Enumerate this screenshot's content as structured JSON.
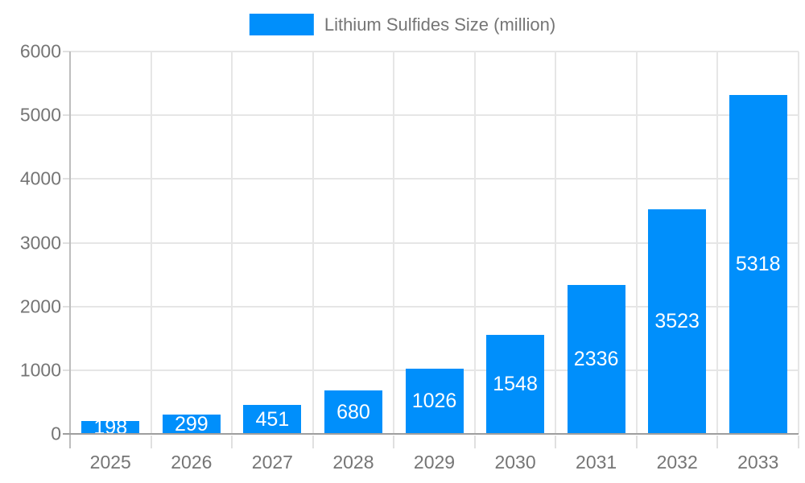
{
  "legend": {
    "label": "Lithium Sulfides Size (million)"
  },
  "colors": {
    "bar": "#008FFB",
    "grid": "#E6E6E6",
    "tick": "#E0E0E0",
    "axis_line": "#BDBDBD",
    "baseline": "#9E9E9E",
    "axis_label_text": "#757575",
    "bar_label_text": "#FFFFFF"
  },
  "chart_data": {
    "type": "bar",
    "title": "Lithium Sulfides Size (million)",
    "categories": [
      "2025",
      "2026",
      "2027",
      "2028",
      "2029",
      "2030",
      "2031",
      "2032",
      "2033"
    ],
    "values": [
      198,
      299,
      451,
      680,
      1026,
      1548,
      2336,
      3523,
      5318
    ],
    "xlabel": "",
    "ylabel": "",
    "ylim": [
      0,
      6000
    ],
    "yticks": [
      0,
      1000,
      2000,
      3000,
      4000,
      5000,
      6000
    ],
    "grid": true,
    "legend_position": "top",
    "bar_labels_shown": true
  }
}
